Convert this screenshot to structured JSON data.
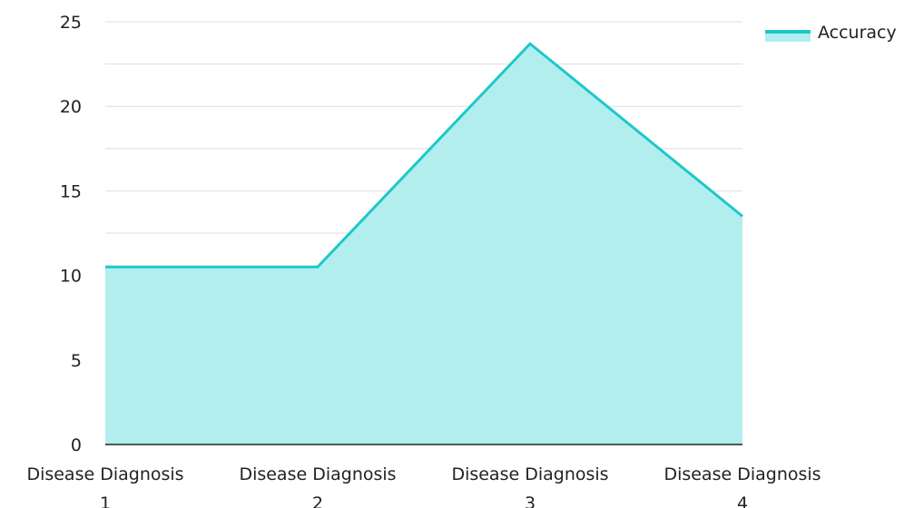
{
  "chart_data": {
    "type": "area",
    "categories": [
      [
        "Disease Diagnosis",
        "1"
      ],
      [
        "Disease Diagnosis",
        "2"
      ],
      [
        "Disease Diagnosis",
        "3"
      ],
      [
        "Disease Diagnosis",
        "4"
      ]
    ],
    "series": [
      {
        "name": "Accuracy",
        "values": [
          10.5,
          10.5,
          23.7,
          13.5
        ]
      }
    ],
    "ylim": [
      0,
      25
    ],
    "yticks": [
      0,
      5,
      10,
      15,
      20,
      25
    ],
    "grid": true,
    "legend_position": "top-right",
    "colors": {
      "line": "#1ec8c8",
      "fill": "#b2eeee",
      "grid": "#dddddd",
      "axis": "#222222"
    }
  }
}
